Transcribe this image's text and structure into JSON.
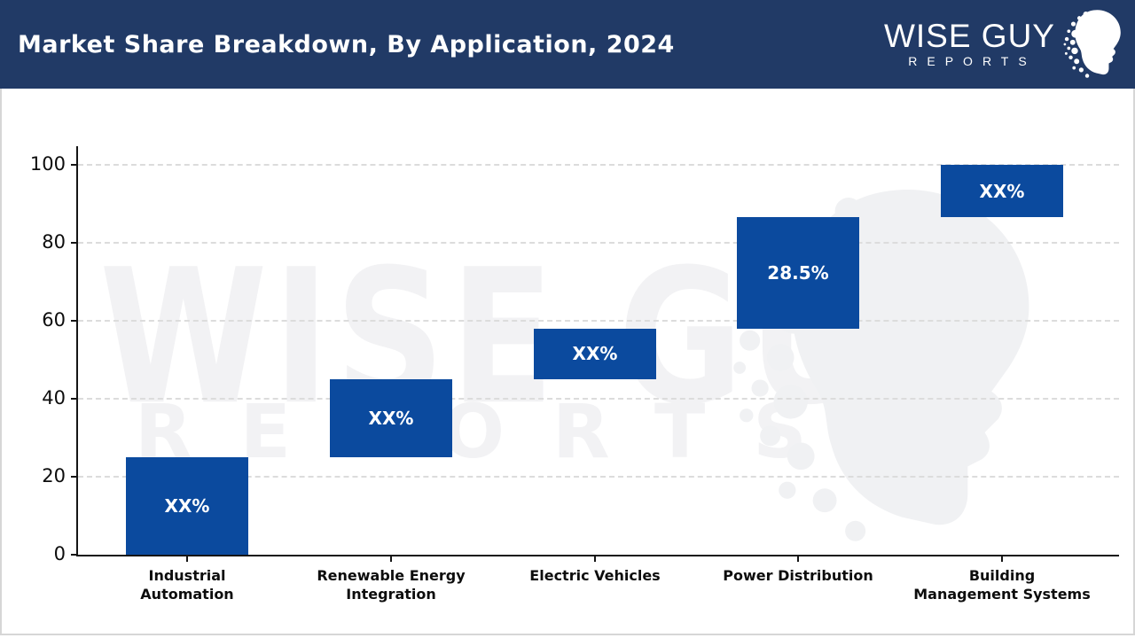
{
  "header": {
    "title": "Market Share Breakdown, By Application, 2024",
    "logo": {
      "primary": "WISE GUY",
      "secondary": "REPORTS"
    }
  },
  "watermark": {
    "primary": "WISE GUY",
    "secondary": "REPORTS"
  },
  "colors": {
    "header_bg": "#213a66",
    "bar_fill": "#0b4a9e",
    "bar_label_text": "#ffffff",
    "grid_line": "#dcdcdc",
    "axis_line": "#151515"
  },
  "chart_data": {
    "type": "bar",
    "subtype": "floating-waterfall",
    "title": "Market Share Breakdown, By Application, 2024",
    "xlabel": "",
    "ylabel": "",
    "ylim": [
      0,
      105
    ],
    "yticks": [
      0,
      20,
      40,
      60,
      80,
      100
    ],
    "grid": "horizontal-dashed",
    "legend": "none",
    "categories": [
      "Industrial Automation",
      "Renewable Energy Integration",
      "Electric Vehicles",
      "Power Distribution",
      "Building Management Systems"
    ],
    "bars": [
      {
        "category_lines": [
          "Industrial",
          "Automation"
        ],
        "start": 0,
        "end": 25,
        "label": "XX%"
      },
      {
        "category_lines": [
          "Renewable Energy",
          "Integration"
        ],
        "start": 25,
        "end": 45,
        "label": "XX%"
      },
      {
        "category_lines": [
          "Electric Vehicles"
        ],
        "start": 45,
        "end": 58,
        "label": "XX%"
      },
      {
        "category_lines": [
          "Power Distribution"
        ],
        "start": 58,
        "end": 86.5,
        "label": "28.5%"
      },
      {
        "category_lines": [
          "Building",
          "Management Systems"
        ],
        "start": 86.5,
        "end": 100,
        "label": "XX%"
      }
    ]
  }
}
